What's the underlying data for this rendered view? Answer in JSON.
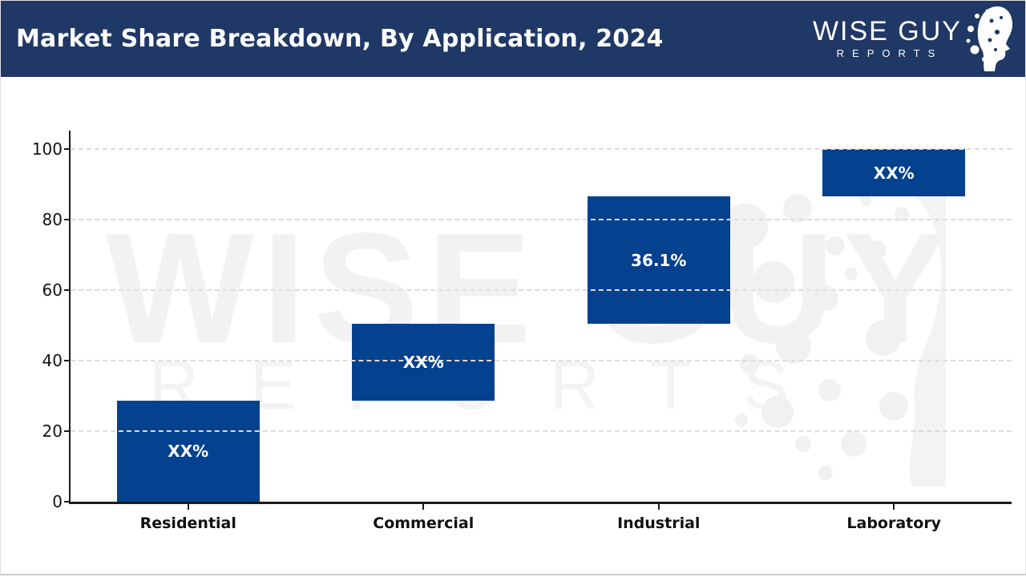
{
  "header": {
    "title": "Market Share Breakdown, By Application, 2024",
    "brand": {
      "name": "WISE GUY",
      "tagline": "REPORTS"
    }
  },
  "watermark": {
    "big_text": "WISE GUY",
    "small_text": "REPORTS"
  },
  "chart_data": {
    "type": "bar",
    "variant": "floating-waterfall",
    "title": "Market Share Breakdown, By Application, 2024",
    "categories": [
      "Residential",
      "Commercial",
      "Industrial",
      "Laboratory"
    ],
    "segments": [
      {
        "category": "Residential",
        "start": 0,
        "end": 28.6,
        "label": "XX%"
      },
      {
        "category": "Commercial",
        "start": 28.6,
        "end": 50.4,
        "label": "XX%"
      },
      {
        "category": "Industrial",
        "start": 50.4,
        "end": 86.5,
        "label": "36.1%"
      },
      {
        "category": "Laboratory",
        "start": 86.5,
        "end": 100,
        "label": "XX%"
      }
    ],
    "ylim": [
      0,
      100
    ],
    "yticks": [
      0,
      20,
      40,
      60,
      80,
      100
    ],
    "xlabel": "",
    "ylabel": "",
    "grid": "horizontal-dashed",
    "legend": "none",
    "bar_color": "#04418f",
    "bar_label_color": "#ffffff"
  },
  "colors": {
    "header_bg": "#1f3865",
    "bar": "#04418f",
    "watermark": "#f2f2f2",
    "gridline": "#dcdcdc",
    "axis": "#1a1a1a",
    "page_bg": "#ffffff"
  }
}
